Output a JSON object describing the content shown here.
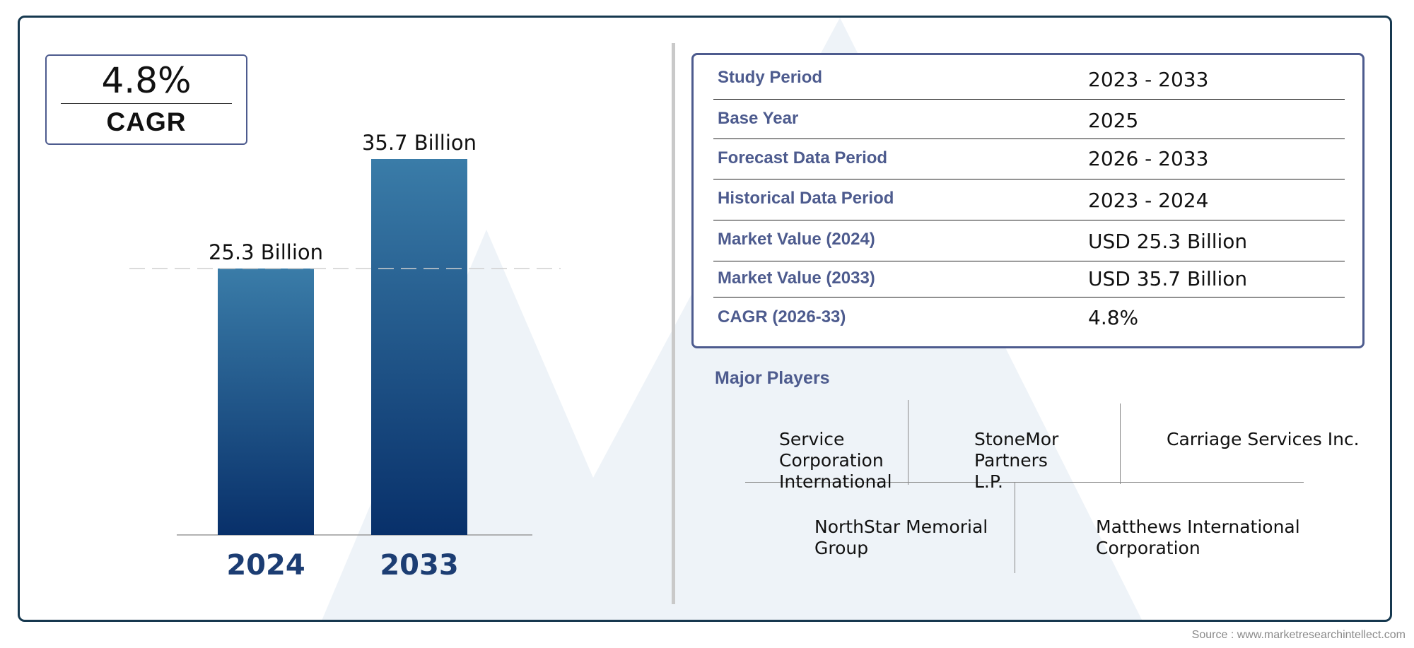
{
  "cagr_box": {
    "value": "4.8%",
    "label": "CAGR"
  },
  "chart_data": {
    "type": "bar",
    "categories": [
      "2024",
      "2033"
    ],
    "values": [
      25.3,
      35.7
    ],
    "data_labels": [
      "25.3 Billion",
      "35.7 Billion"
    ],
    "reference_line": 25.3,
    "colors": {
      "bar_top": "#3a7ca8",
      "bar_bottom": "#08306a",
      "tick": "#1c3d73",
      "reference": "#cfcfcf"
    }
  },
  "info_table": {
    "rows": [
      {
        "label": "Study Period",
        "value": "2023 - 2033"
      },
      {
        "label": "Base Year",
        "value": "2025"
      },
      {
        "label": "Forecast Data Period",
        "value": "2026 - 2033"
      },
      {
        "label": "Historical Data Period",
        "value": "2023 - 2024"
      },
      {
        "label": "Market Value (2024)",
        "value": "USD 25.3 Billion"
      },
      {
        "label": "Market Value (2033)",
        "value": "USD 35.7 Billion"
      },
      {
        "label": "CAGR (2026-33)",
        "value": "4.8%"
      }
    ]
  },
  "players": {
    "title": "Major Players",
    "names": [
      "Service Corporation International",
      "StoneMor Partners L.P.",
      "Carriage Services Inc.",
      "NorthStar Memorial Group",
      "Matthews International Corporation"
    ]
  },
  "source": "Source : www.marketresearchintellect.com",
  "colors": {
    "frame": "#16384f",
    "accent": "#4d5b8e",
    "watermark": "#eef3f8"
  }
}
